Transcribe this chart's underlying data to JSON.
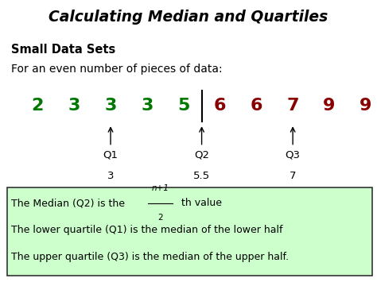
{
  "title": "Calculating Median and Quartiles",
  "subtitle": "Small Data Sets",
  "line2": "For an even number of pieces of data:",
  "numbers": [
    "2",
    "3",
    "3",
    "3",
    "5",
    "6",
    "6",
    "7",
    "9",
    "9"
  ],
  "number_colors": [
    "green",
    "green",
    "green",
    "green",
    "green",
    "darkred",
    "darkred",
    "darkred",
    "darkred",
    "darkred"
  ],
  "q1_label": "Q1",
  "q2_label": "Q2",
  "q3_label": "Q3",
  "q1_val": "3",
  "q2_val": "5.5",
  "q3_val": "7",
  "box_line1_pre": "The Median (Q2) is the ",
  "box_line1_frac_num": "n+1",
  "box_line1_frac_den": "2",
  "box_line1_post": " th value",
  "box_line2": "The lower quartile (Q1) is the median of the lower half",
  "box_line3": "The upper quartile (Q3) is the median of the upper half.",
  "bg_color": "#ffffff",
  "box_bg_color": "#ccffcc",
  "box_border_color": "#333333",
  "title_color": "#000000",
  "text_color": "#000000",
  "green_color": "#007700",
  "darkred_color": "#880000"
}
